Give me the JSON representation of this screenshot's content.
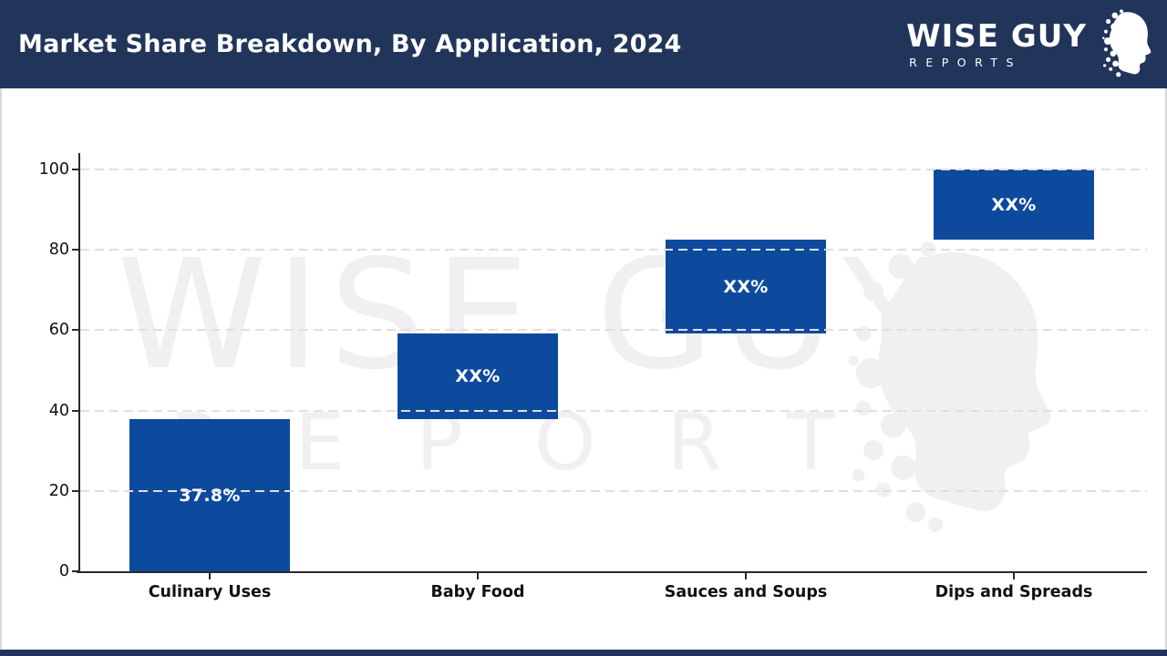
{
  "header": {
    "title": "Market Share Breakdown, By Application, 2024",
    "bg_color": "#21355a",
    "logo": {
      "line1": "WISE GUY",
      "line2": "REPORTS"
    }
  },
  "watermark": {
    "line1": "WISE GUY",
    "line2": "REPORTS"
  },
  "colors": {
    "header_bg": "#21355a",
    "bar_blue": "#0d4a9e",
    "grid_gray": "#e0e0e0",
    "axis_dark": "#2a2a2a",
    "watermark_gray": "#f0f0f2",
    "bar_label_white": "#ffffff"
  },
  "chart_data": {
    "type": "bar",
    "subtype": "waterfall",
    "title": "Market Share Breakdown, By Application, 2024",
    "categories": [
      "Culinary Uses",
      "Baby Food",
      "Sauces and Soups",
      "Dips and Spreads"
    ],
    "segments": [
      {
        "category": "Culinary Uses",
        "start": 0,
        "end": 37.8,
        "label": "37.8%"
      },
      {
        "category": "Baby Food",
        "start": 37.8,
        "end": 59.2,
        "label": "XX%"
      },
      {
        "category": "Sauces and Soups",
        "start": 59.2,
        "end": 82.5,
        "label": "XX%"
      },
      {
        "category": "Dips and Spreads",
        "start": 82.5,
        "end": 100,
        "label": "XX%"
      }
    ],
    "y_ticks": [
      0,
      20,
      40,
      60,
      80,
      100
    ],
    "ylim": [
      0,
      100
    ],
    "xlabel": "",
    "ylabel": "",
    "grid": "horizontal-dashed-over-bars",
    "legend": "none",
    "bar_color": "#0d4a9e",
    "label_color": "#ffffff"
  }
}
